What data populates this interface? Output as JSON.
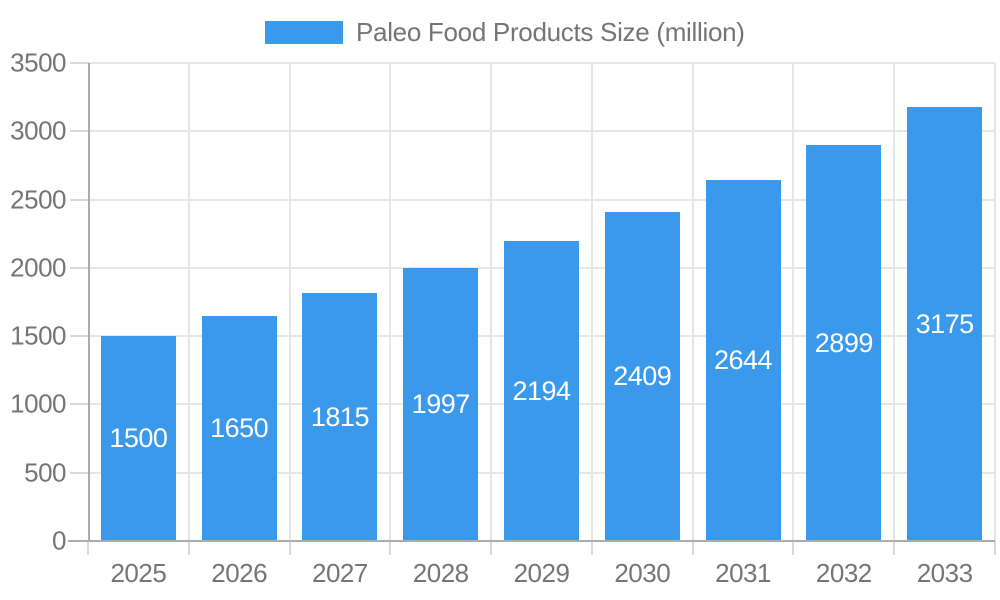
{
  "chart_data": {
    "type": "bar",
    "title": "Paleo Food Products Size (million)",
    "legend": {
      "position": "top",
      "label": "Paleo Food Products Size (million)"
    },
    "categories": [
      "2025",
      "2026",
      "2027",
      "2028",
      "2029",
      "2030",
      "2031",
      "2032",
      "2033"
    ],
    "series": [
      {
        "name": "Paleo Food Products Size (million)",
        "values": [
          1500,
          1650,
          1815,
          1997,
          2194,
          2409,
          2644,
          2899,
          3175
        ]
      }
    ],
    "xlabel": "",
    "ylabel": "",
    "ylim": [
      0,
      3500
    ],
    "ytick_step": 500,
    "grid": true,
    "value_labels": "inside-center",
    "colors": {
      "bar": "#3B99EC",
      "grid": "#E6E6E6",
      "axis": "#ACACAC",
      "tick": "#D9D9D9",
      "label": "#757575",
      "value_label": "#FFFFFF",
      "background": "#FFFFFF"
    }
  }
}
